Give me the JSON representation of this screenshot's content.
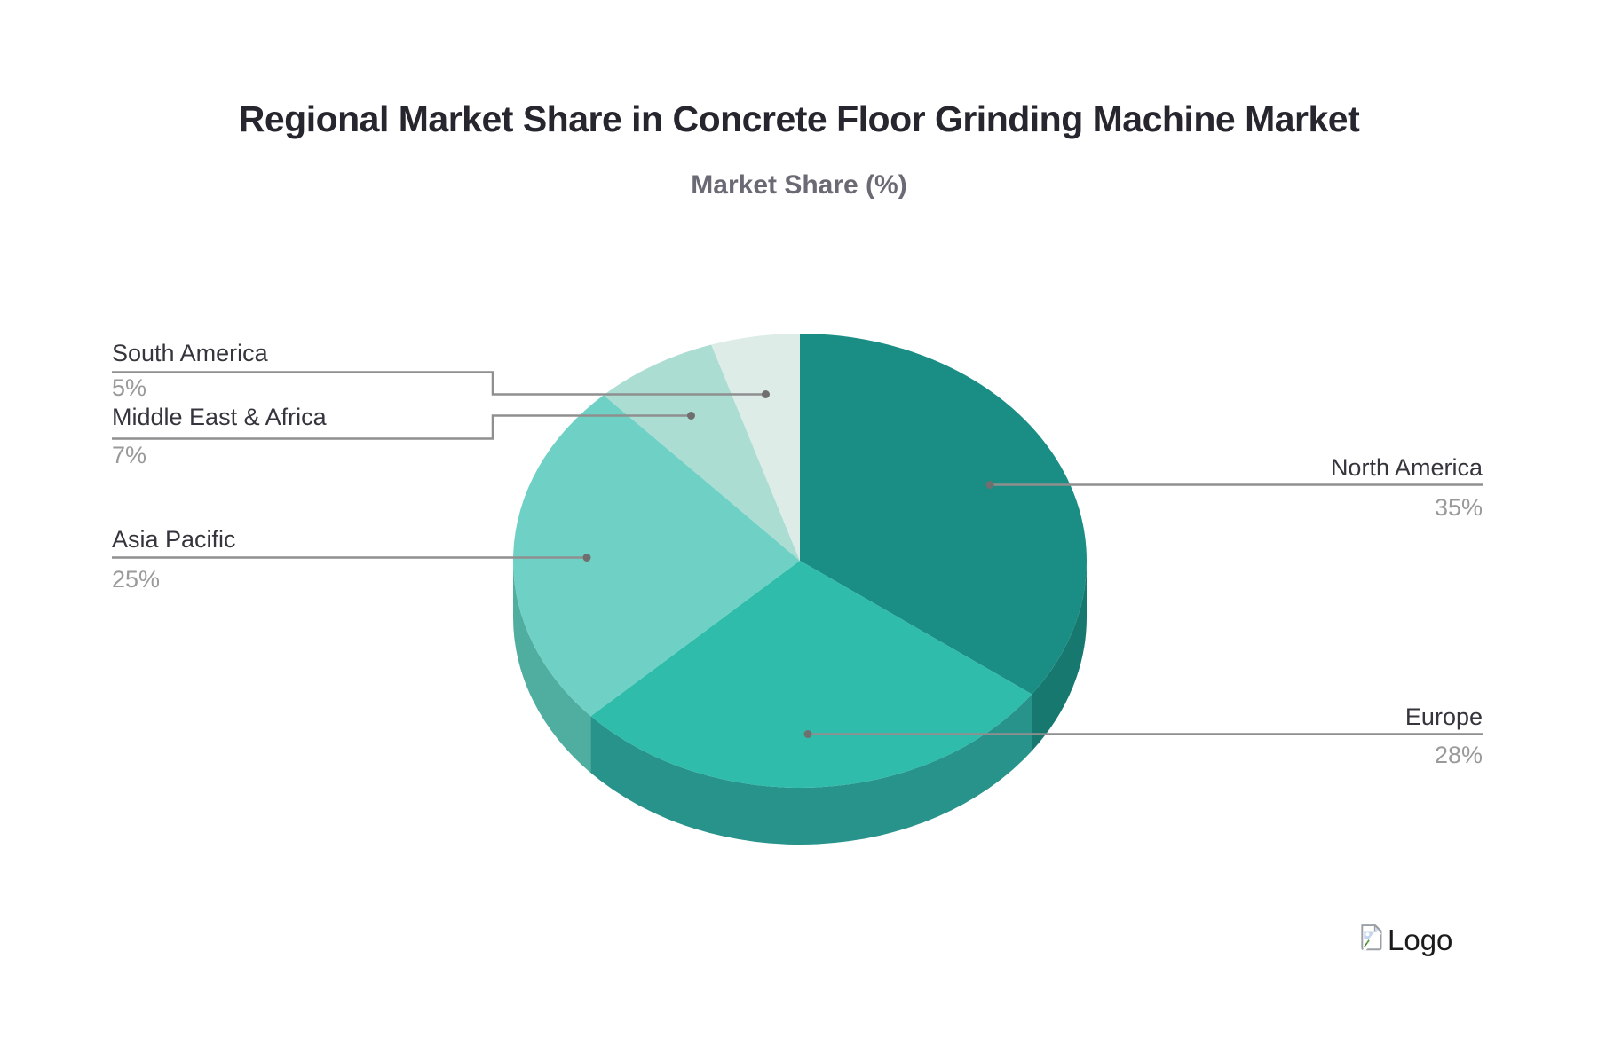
{
  "title": "Regional Market Share in Concrete Floor Grinding Machine Market",
  "subtitle": "Market Share (%)",
  "logo": {
    "alt_text": "Logo"
  },
  "chart_data": {
    "type": "pie",
    "style": "3d-pie",
    "title": "Regional Market Share in Concrete Floor Grinding Machine Market",
    "subtitle": "Market Share (%)",
    "unit": "%",
    "start_angle": "12 o'clock, clockwise",
    "legend": "none (callout labels with leader lines)",
    "slices": [
      {
        "label": "North America",
        "value": 35,
        "pct_label": "35%",
        "color": "#1a8e84",
        "side_color": "#17786f"
      },
      {
        "label": "Europe",
        "value": 28,
        "pct_label": "28%",
        "color": "#2fbcab",
        "side_color": "#27938a"
      },
      {
        "label": "Asia Pacific",
        "value": 25,
        "pct_label": "25%",
        "color": "#6fd1c5",
        "side_color": "#4fae9f"
      },
      {
        "label": "Middle East & Africa",
        "value": 7,
        "pct_label": "7%",
        "color": "#abddd3",
        "side_color": "#8fc3b9"
      },
      {
        "label": "South America",
        "value": 5,
        "pct_label": "5%",
        "color": "#deece8",
        "side_color": "#c2d8d2"
      }
    ],
    "callout_colors": {
      "line": "#8f8f8f",
      "dot": "#6f6f6f"
    }
  }
}
